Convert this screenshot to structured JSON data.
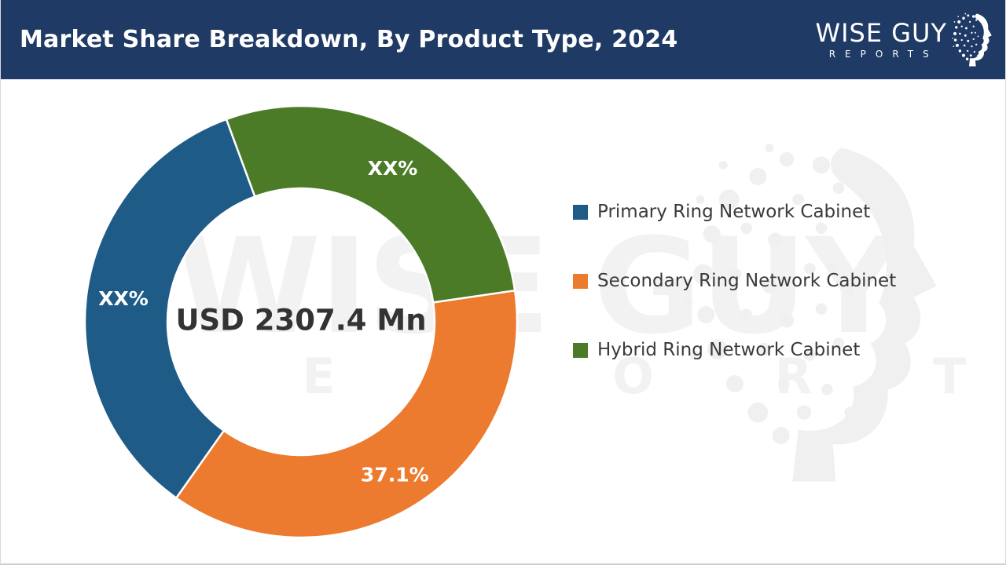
{
  "header": {
    "title": "Market Share Breakdown, By Product Type, 2024",
    "bg_color": "#1f3a64",
    "logo": {
      "line1": "WISE GUY",
      "line2": "REPORTS",
      "head_icon": "dotted-head-profile-icon"
    }
  },
  "watermark": {
    "line1": "WISE GUY",
    "line2": "R E P O R T S"
  },
  "chart_data": {
    "type": "pie",
    "subtype": "donut",
    "center_label": "USD 2307.4 Mn",
    "start_angle_deg": 110.2,
    "legend_position": "right",
    "slices": [
      {
        "name": "Primary Ring Network Cabinet",
        "label": "XX%",
        "value": 34.6,
        "color": "#1f5b87"
      },
      {
        "name": "Secondary Ring Network Cabinet",
        "label": "37.1%",
        "value": 37.1,
        "color": "#ec7b2f"
      },
      {
        "name": "Hybrid Ring Network Cabinet",
        "label": "XX%",
        "value": 28.3,
        "color": "#4b7b27"
      }
    ]
  }
}
